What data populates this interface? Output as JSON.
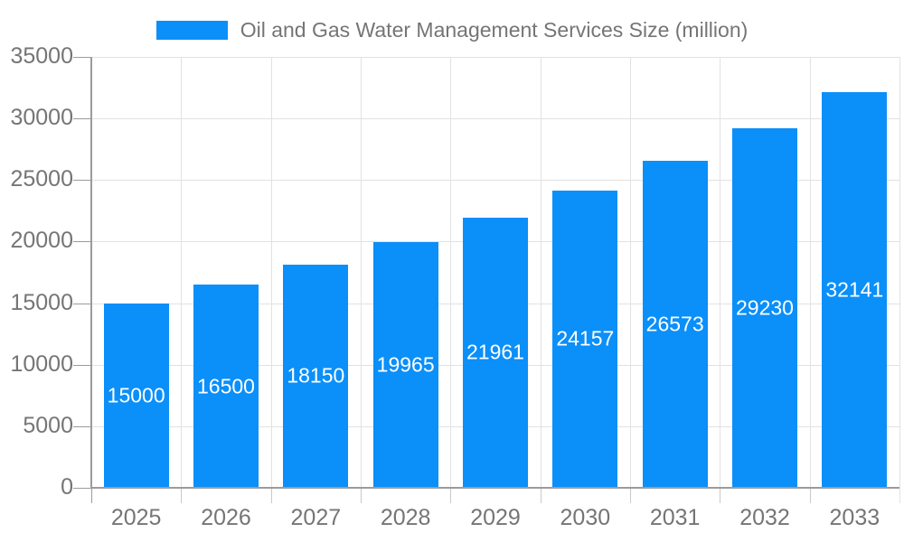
{
  "legend": {
    "label": "Oil and Gas Water Management Services Size (million)"
  },
  "chart_data": {
    "type": "bar",
    "title": "Oil and Gas Water Management Services Size (million)",
    "categories": [
      "2025",
      "2026",
      "2027",
      "2028",
      "2029",
      "2030",
      "2031",
      "2032",
      "2033"
    ],
    "series": [
      {
        "name": "Oil and Gas Water Management Services Size (million)",
        "values": [
          15000,
          16500,
          18150,
          19965,
          21961,
          24157,
          26573,
          29230,
          32141
        ]
      }
    ],
    "bar_value_labels": [
      "15000",
      "16500",
      "18150",
      "19965",
      "21961",
      "24157",
      "26573",
      "29230",
      "32141"
    ],
    "xlabel": "",
    "ylabel": "",
    "ylim": [
      0,
      35000
    ],
    "yticks": [
      0,
      5000,
      10000,
      15000,
      20000,
      25000,
      30000,
      35000
    ],
    "ytick_labels": [
      "0",
      "5000",
      "10000",
      "15000",
      "20000",
      "25000",
      "30000",
      "35000"
    ],
    "grid": true,
    "legend_position": "top",
    "colors": {
      "bar": "#0b8ff9",
      "grid": "#e2e2e2",
      "axis": "#9b9b9b",
      "tick": "#c8c8c8",
      "text": "#757575",
      "value_label": "#ffffff",
      "background": "#ffffff"
    }
  }
}
